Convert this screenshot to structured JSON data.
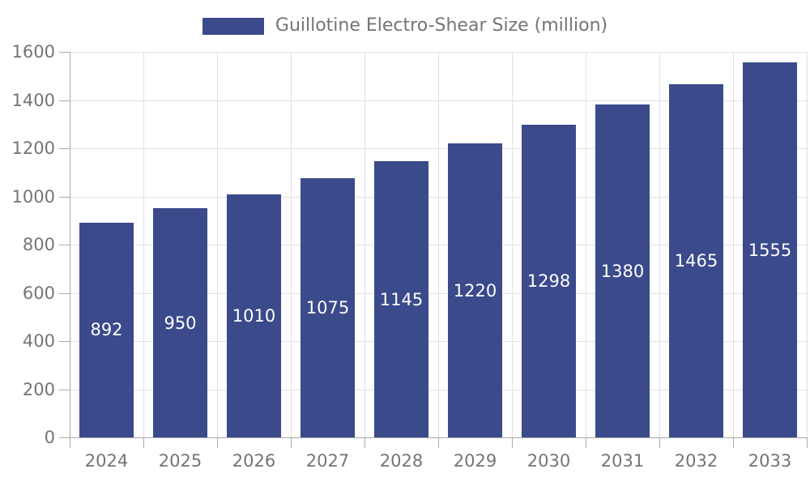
{
  "legend": {
    "label": "Guillotine Electro-Shear Size (million)"
  },
  "colors": {
    "bar": "#3A4A8B",
    "h_grid": "#E2E2E2",
    "v_grid": "#E0E0E4",
    "axis": "#ABABAB",
    "tick_text": "#757575",
    "bar_label": "#FFFFFF",
    "background": "#FFFFFF"
  },
  "chart_data": {
    "type": "bar",
    "title": "",
    "series_name": "Guillotine Electro-Shear Size (million)",
    "categories": [
      "2024",
      "2025",
      "2026",
      "2027",
      "2028",
      "2029",
      "2030",
      "2031",
      "2032",
      "2033"
    ],
    "values": [
      892,
      950,
      1010,
      1075,
      1145,
      1220,
      1298,
      1380,
      1465,
      1555
    ],
    "xlabel": "",
    "ylabel": "",
    "ylim": [
      0,
      1600
    ],
    "yticks": [
      0,
      200,
      400,
      600,
      800,
      1000,
      1200,
      1400,
      1600
    ],
    "grid": true,
    "value_labels": "inside-center",
    "legend_position": "top-center"
  }
}
